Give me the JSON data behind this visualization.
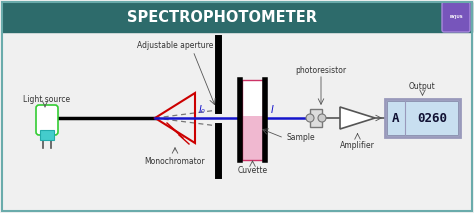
{
  "title": "SPECTROPHOTOMETER",
  "title_bg": "#2d6b6b",
  "title_color": "white",
  "bg_color": "#f0f0f0",
  "border_color": "#6aabab",
  "beam_color": "#1515cc",
  "dashed_color": "#777777",
  "cuvette_fill": "#f0b8d0",
  "cuvette_top_fill": "#ffffff",
  "triangle_color": "#cc0000",
  "bulb_color": "#aaffaa",
  "bulb_outline": "#33cc33",
  "bulb_base": "#44cccc",
  "logo_bg": "#7755bb",
  "display_bg": "#c8dff0",
  "display_border": "#9999bb",
  "display_text_color": "#111133",
  "label_color": "#333333",
  "components": {
    "light_source_label": "Light source",
    "monochromator_label": "Monochromator",
    "aperture_label": "Adjustable aperture",
    "cuvette_label": "Cuvette",
    "sample_label": "Sample",
    "photoresistor_label": "photoresistor",
    "amplifier_label": "Amplifier",
    "output_label": "Output",
    "I0_label": "I₀",
    "I_label": "I"
  },
  "display_text": "A  0260",
  "figsize": [
    4.74,
    2.13
  ],
  "dpi": 100
}
